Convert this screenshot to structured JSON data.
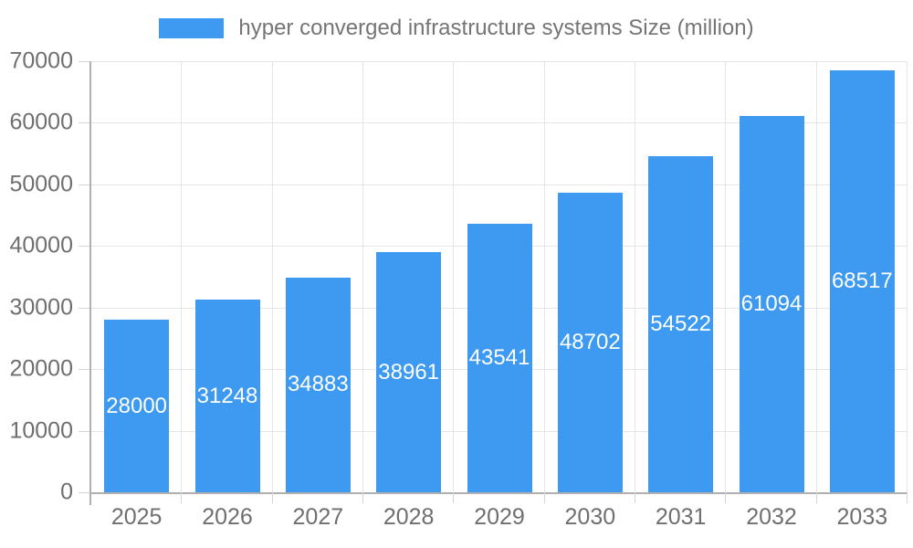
{
  "legend": {
    "label": "hyper converged infrastructure systems Size (million)"
  },
  "chart_data": {
    "type": "bar",
    "title": "hyper converged infrastructure systems Size (million)",
    "categories": [
      "2025",
      "2026",
      "2027",
      "2028",
      "2029",
      "2030",
      "2031",
      "2032",
      "2033"
    ],
    "values": [
      28000,
      31248,
      34883,
      38961,
      43541,
      48702,
      54522,
      61094,
      68517
    ],
    "series": [
      {
        "name": "hyper converged infrastructure systems Size (million)",
        "values": [
          28000,
          31248,
          34883,
          38961,
          43541,
          48702,
          54522,
          61094,
          68517
        ]
      }
    ],
    "xlabel": "",
    "ylabel": "",
    "ylim": [
      0,
      70000
    ],
    "ytick_interval": 10000,
    "yticks": [
      "0",
      "10000",
      "20000",
      "30000",
      "40000",
      "50000",
      "60000",
      "70000"
    ],
    "grid": "on",
    "legend_position": "top",
    "data_labels": "inside-center, white"
  },
  "colors": {
    "bar": "#3D9AF0",
    "grid": "#e5e5e5",
    "axis": "#b0b0b0",
    "tick": "#d4d4d4",
    "axis_text": "#6f6f6f",
    "legend_text": "#757575",
    "data_label": "#ffffff",
    "background": "#ffffff"
  }
}
